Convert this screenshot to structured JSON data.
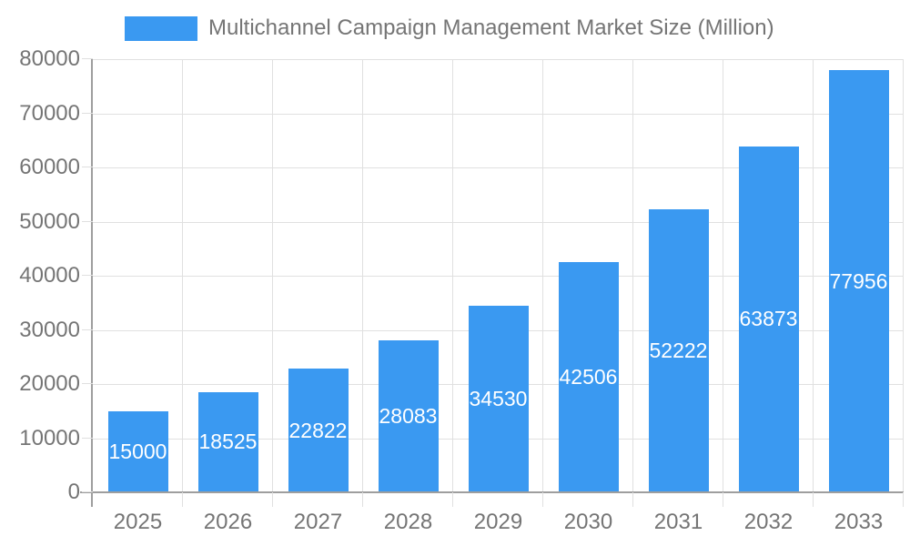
{
  "chart_data": {
    "type": "bar",
    "title": "Multichannel Campaign Management Market Size (Million)",
    "legend": {
      "position": "top",
      "label": "Multichannel Campaign Management Market Size (Million)"
    },
    "categories": [
      "2025",
      "2026",
      "2027",
      "2028",
      "2029",
      "2030",
      "2031",
      "2032",
      "2033"
    ],
    "values": [
      15000,
      18525,
      22822,
      28083,
      34530,
      42506,
      52222,
      63873,
      77956
    ],
    "value_labels": [
      "15000",
      "18525",
      "22822",
      "28083",
      "34530",
      "42506",
      "52222",
      "63873",
      "77956"
    ],
    "xlabel": "",
    "ylabel": "",
    "ylim": [
      0,
      80000
    ],
    "ytick_interval": 10000,
    "ytick_labels": [
      "0",
      "10000",
      "20000",
      "30000",
      "40000",
      "50000",
      "60000",
      "70000",
      "80000"
    ],
    "grid": true,
    "colors": {
      "bar": "#3A99F1",
      "value_label": "#FFFFFF",
      "axis_text": "#757575",
      "axis_line": "#9E9E9E",
      "gridline": "#E0E0E0",
      "background": "#FFFFFF"
    }
  }
}
